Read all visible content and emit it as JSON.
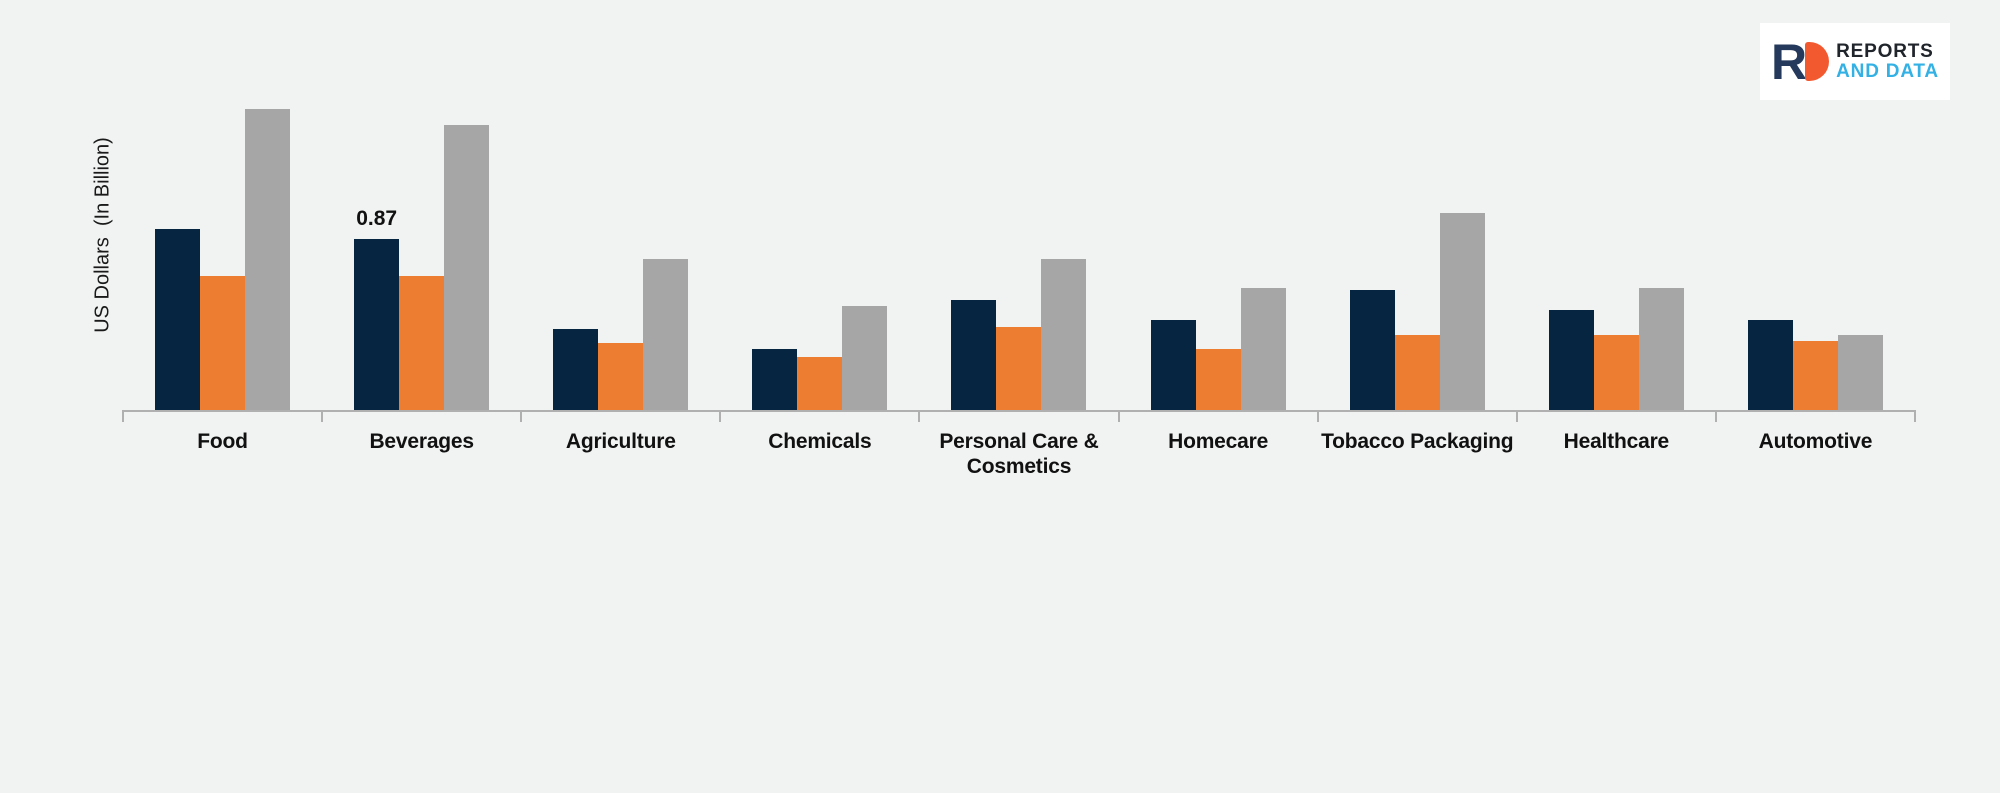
{
  "background_color": "#f1f2f2",
  "logo": {
    "monogram_r": "R",
    "monogram_d": "D",
    "line1": "REPORTS",
    "line2": "AND DATA",
    "colors": {
      "monogram_r": "#24395b",
      "monogram_d": "#f2592f",
      "line1": "#20242b",
      "line2": "#33b1e4",
      "box": "#ffffff"
    }
  },
  "chart_data": {
    "type": "bar",
    "title": "",
    "xlabel": "",
    "ylabel": "US Dollars  (In Billion)",
    "categories": [
      "Food",
      "Beverages",
      "Agriculture",
      "Chemicals",
      "Personal Care & Cosmetics",
      "Homecare",
      "Tobacco Packaging",
      "Healthcare",
      "Automotive"
    ],
    "series": [
      {
        "name": "navy",
        "color": "#062540",
        "values": [
          0.92,
          0.87,
          0.41,
          0.31,
          0.56,
          0.46,
          0.61,
          0.51,
          0.46
        ]
      },
      {
        "name": "orange",
        "color": "#ed7d31",
        "values": [
          0.68,
          0.68,
          0.34,
          0.27,
          0.42,
          0.31,
          0.38,
          0.38,
          0.35
        ]
      },
      {
        "name": "gray",
        "color": "#a6a6a6",
        "values": [
          1.53,
          1.45,
          0.77,
          0.53,
          0.77,
          0.62,
          1.0,
          0.62,
          0.38
        ]
      }
    ],
    "point_labels": [
      {
        "category_index": 1,
        "series_index": 0,
        "text": "0.87"
      }
    ],
    "ylim": [
      0,
      1.6
    ],
    "grid": false,
    "legend": "none",
    "axis_color": "#b0b0b0",
    "label_color": "#111111"
  }
}
